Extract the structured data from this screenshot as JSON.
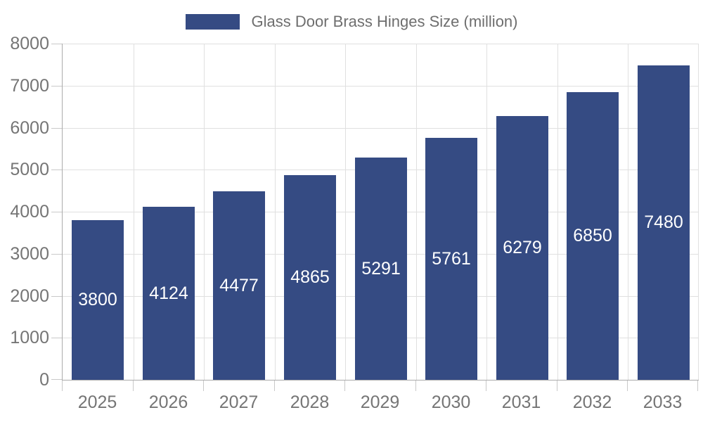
{
  "legend": {
    "label": "Glass Door Brass Hinges Size (million)"
  },
  "chart_data": {
    "type": "bar",
    "title": "",
    "xlabel": "",
    "ylabel": "",
    "series_name": "Glass Door Brass Hinges Size (million)",
    "categories": [
      "2025",
      "2026",
      "2027",
      "2028",
      "2029",
      "2030",
      "2031",
      "2032",
      "2033"
    ],
    "values": [
      3800,
      4124,
      4477,
      4865,
      5291,
      5761,
      6279,
      6850,
      7480
    ],
    "ylim": [
      0,
      8000
    ],
    "yticks": [
      0,
      1000,
      2000,
      3000,
      4000,
      5000,
      6000,
      7000,
      8000
    ],
    "grid": true,
    "legend_position": "top-center",
    "bar_color": "#354B83",
    "bar_label_color": "#FFFFFF",
    "axis_label_color": "#757575",
    "grid_color": "#E0E0E0",
    "axis_line_color": "#ABABAB",
    "tick_color": "#C9C9C9"
  }
}
